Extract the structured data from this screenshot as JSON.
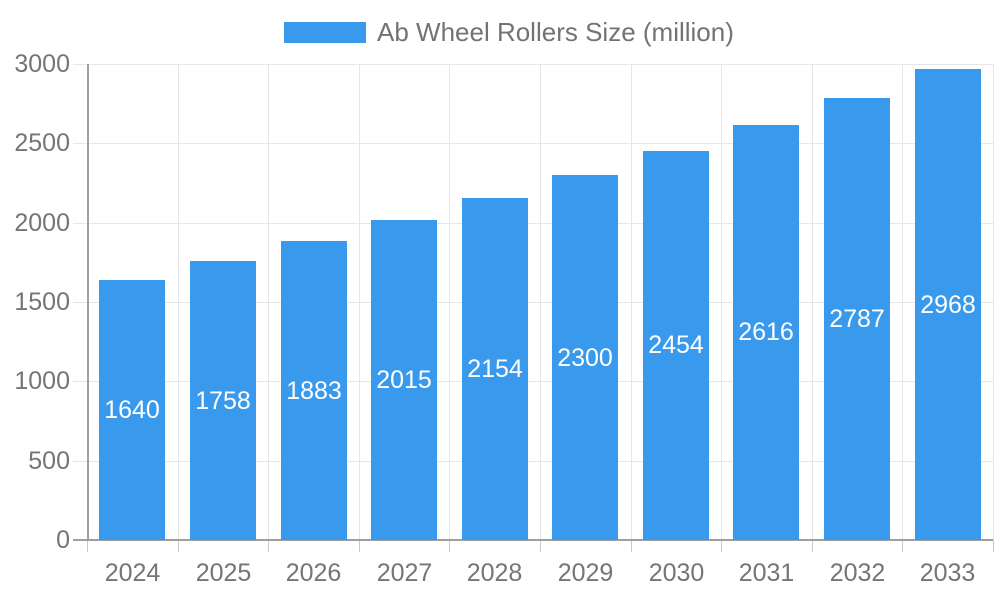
{
  "chart_data": {
    "type": "bar",
    "title": "",
    "xlabel": "",
    "ylabel": "",
    "legend": {
      "label": "Ab Wheel Rollers Size (million)",
      "position": "top"
    },
    "categories": [
      "2024",
      "2025",
      "2026",
      "2027",
      "2028",
      "2029",
      "2030",
      "2031",
      "2032",
      "2033"
    ],
    "series": [
      {
        "name": "Ab Wheel Rollers Size (million)",
        "values": [
          1640,
          1758,
          1883,
          2015,
          2154,
          2300,
          2454,
          2616,
          2787,
          2968
        ]
      }
    ],
    "ylim": [
      0,
      3000
    ],
    "yticks": [
      0,
      500,
      1000,
      1500,
      2000,
      2500,
      3000
    ],
    "grid": true,
    "data_labels_position": "inside-center"
  },
  "colors": {
    "bar": "#3999ED",
    "bar_label_text": "#FFFFFF",
    "axis_line": "#9E9E9E",
    "grid_line": "#E6E6E6",
    "tick_mark": "#C9C9C9",
    "axis_text": "#757575",
    "legend_text": "#737373",
    "background": "#FFFFFF"
  }
}
